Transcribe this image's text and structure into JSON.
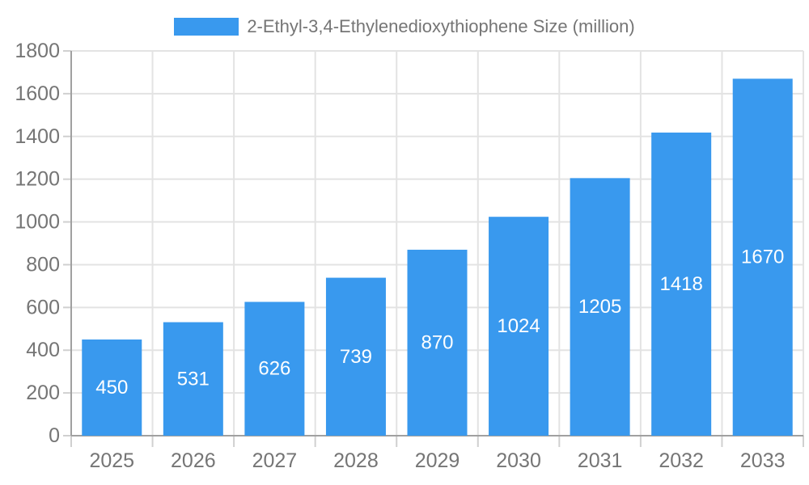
{
  "chart_data": {
    "type": "bar",
    "title": "2-Ethyl-3,4-Ethylenedioxythiophene Size (million)",
    "categories": [
      "2025",
      "2026",
      "2027",
      "2028",
      "2029",
      "2030",
      "2031",
      "2032",
      "2033"
    ],
    "values": [
      450,
      531,
      626,
      739,
      870,
      1024,
      1205,
      1418,
      1670
    ],
    "xlabel": "",
    "ylabel": "",
    "ylim": [
      0,
      1800
    ],
    "yticks": [
      0,
      200,
      400,
      600,
      800,
      1000,
      1200,
      1400,
      1600,
      1800
    ],
    "grid": true,
    "legend_position": "top",
    "value_labels_inside_bars": true,
    "colors": {
      "bar": "#3999EE",
      "bar_value_label": "#ffffff",
      "axis_text": "#757575",
      "grid_line": "#e3e3e3",
      "axis_line": "#a0a0a0",
      "tick_mark": "#d0d0d0",
      "background": "#ffffff"
    }
  }
}
